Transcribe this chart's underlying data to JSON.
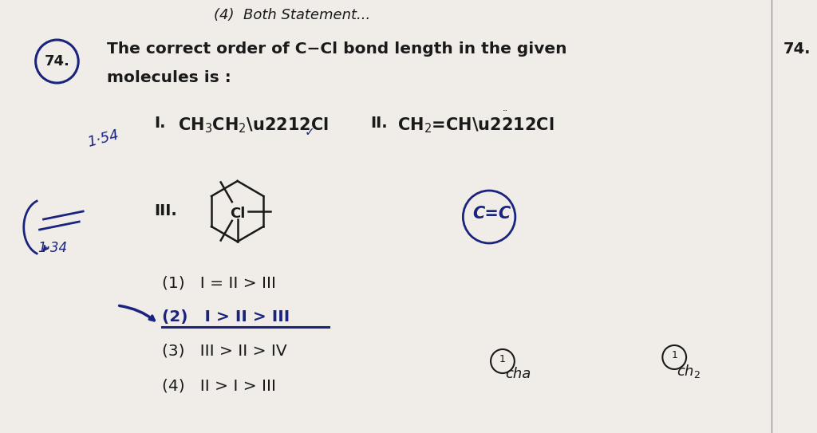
{
  "background_color": "#f0ede8",
  "question_text": "The correct order of C−Cl bond length in the given",
  "question_text2": "molecules is :",
  "options": [
    "(1)   I = II > III",
    "(2)   I > II > III",
    "(3)   III > II > IV",
    "(4)   II > I > III"
  ],
  "font_color": "#1a1a1a",
  "ink_blue": "#1a237e",
  "ink_dark": "#1a1a2e",
  "right_number": "74.",
  "header_text": "(4)  Both Statement...",
  "annotation_154": "1·54",
  "annotation_134": "1·34"
}
